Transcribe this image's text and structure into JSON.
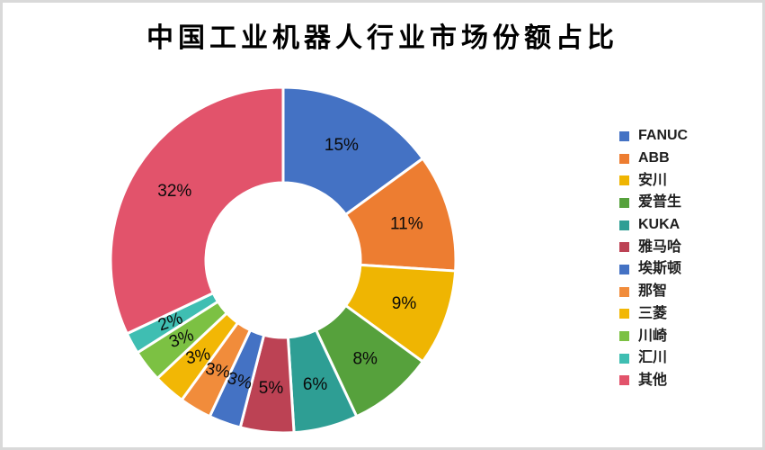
{
  "chart_data": {
    "type": "pie",
    "subtype": "donut",
    "title": "中国工业机器人行业市场份额占比",
    "unit": "%",
    "categories": [
      "FANUC",
      "ABB",
      "安川",
      "爱普生",
      "KUKA",
      "雅马哈",
      "埃斯顿",
      "那智",
      "三菱",
      "川崎",
      "汇川",
      "其他"
    ],
    "values": [
      15,
      11,
      9,
      8,
      6,
      5,
      3,
      3,
      3,
      3,
      2,
      32
    ],
    "data_labels": [
      "15%",
      "11%",
      "9%",
      "8%",
      "6%",
      "5%",
      "3%",
      "3%",
      "3%",
      "3%",
      "2%",
      "32%"
    ],
    "colors": [
      "#4472C4",
      "#ED7D31",
      "#EFB502",
      "#56A13C",
      "#2E9E94",
      "#BC4254",
      "#4472C4",
      "#F18C3B",
      "#F2B705",
      "#7CC143",
      "#3FBEB2",
      "#E2536B"
    ],
    "legend_position": "right",
    "start_angle_deg": 0,
    "direction": "clockwise",
    "inner_radius_ratio": 0.45,
    "label_rotations_deg": [
      0,
      0,
      0,
      0,
      0,
      0,
      15,
      10,
      -12,
      -20,
      -20,
      0
    ],
    "gap_color": "#FFFFFF",
    "label_text_color": "#0A0A0A",
    "frame_border_color": "#D9D9D9",
    "background_color": "#FFFFFF"
  }
}
